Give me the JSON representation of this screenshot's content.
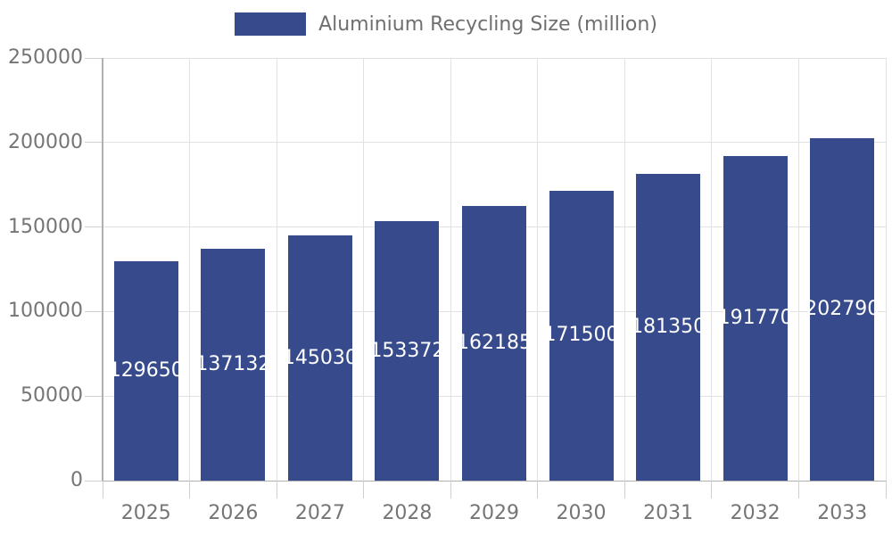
{
  "chart_data": {
    "type": "bar",
    "title": "Aluminium Recycling Size (million)",
    "legend": {
      "label": "Aluminium Recycling Size (million)",
      "position": "top"
    },
    "categories": [
      "2025",
      "2026",
      "2027",
      "2028",
      "2029",
      "2030",
      "2031",
      "2032",
      "2033"
    ],
    "values": [
      129650,
      137132,
      145030,
      153372,
      162185,
      171500,
      181350,
      191770,
      202790
    ],
    "xlabel": "",
    "ylabel": "",
    "ylim": [
      0,
      250000
    ],
    "ytick_interval": 50000,
    "yticks": [
      0,
      50000,
      100000,
      150000,
      200000,
      250000
    ],
    "grid": true,
    "bar_labels": "inside-center"
  },
  "style": {
    "bar_color": "#374b8c",
    "grid_color": "#e2e2e2",
    "axis_color": "#b0b0b0",
    "tick_color": "#cfcfcf",
    "tick_label_color": "#757575",
    "legend_text_color": "#6f6f6f",
    "bar_label_color": "#ffffff",
    "background_color": "#ffffff"
  }
}
